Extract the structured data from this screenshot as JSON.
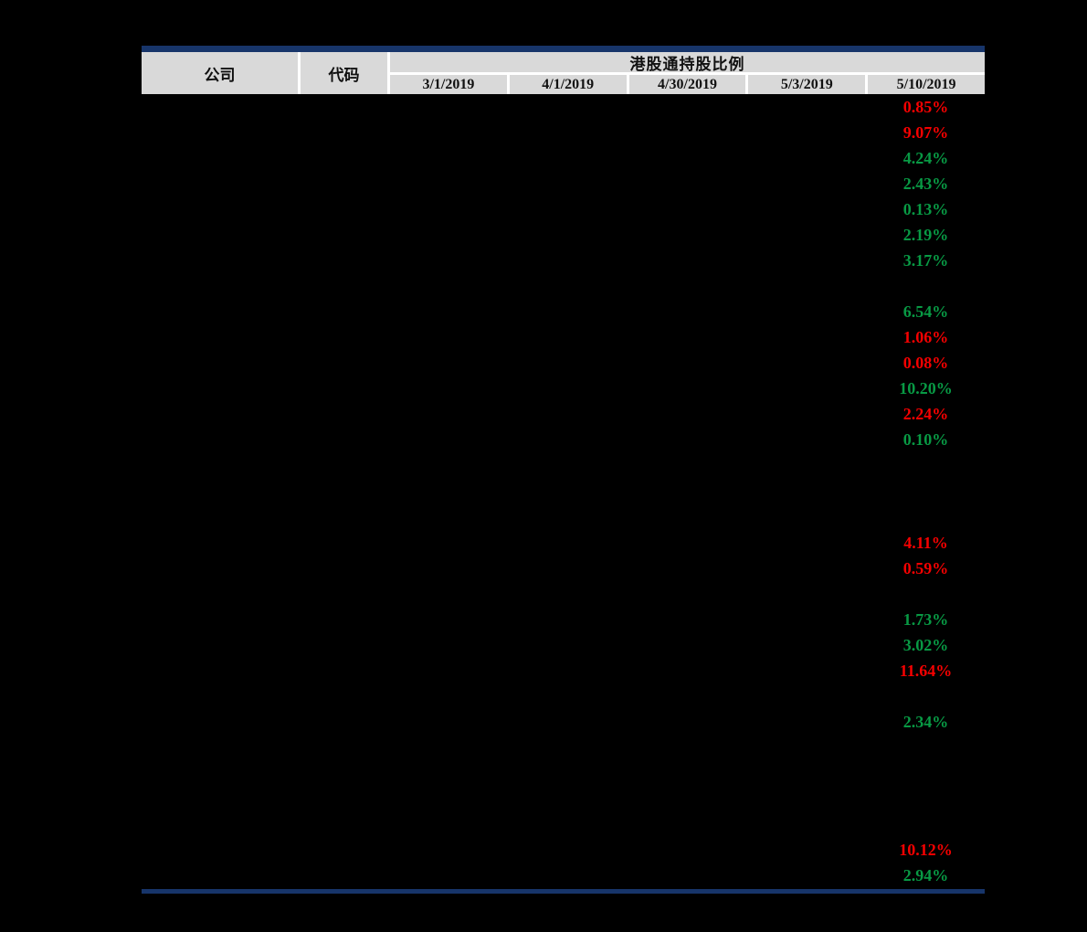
{
  "page": {
    "background": "#000000"
  },
  "colors": {
    "rule_blue": "#17356a",
    "header_bg": "#d9d9d9",
    "header_text": "#111111",
    "divider_white": "#ffffff",
    "value_red": "#f40000",
    "value_green": "#089944"
  },
  "table": {
    "header": {
      "company_label": "公司",
      "code_label": "代码",
      "group_title": "港股通持股比例",
      "dates": [
        "3/1/2019",
        "4/1/2019",
        "4/30/2019",
        "5/3/2019",
        "5/10/2019"
      ]
    },
    "rows": [
      {
        "value": "0.85%",
        "color": "red"
      },
      {
        "value": "9.07%",
        "color": "red"
      },
      {
        "value": "4.24%",
        "color": "green"
      },
      {
        "value": "2.43%",
        "color": "green"
      },
      {
        "value": "0.13%",
        "color": "green"
      },
      {
        "value": "2.19%",
        "color": "green"
      },
      {
        "value": "3.17%",
        "color": "green"
      },
      {
        "value": "",
        "color": ""
      },
      {
        "value": "6.54%",
        "color": "green"
      },
      {
        "value": "1.06%",
        "color": "red"
      },
      {
        "value": "0.08%",
        "color": "red"
      },
      {
        "value": "10.20%",
        "color": "green"
      },
      {
        "value": "2.24%",
        "color": "red"
      },
      {
        "value": "0.10%",
        "color": "green"
      },
      {
        "value": "",
        "color": ""
      },
      {
        "value": "",
        "color": ""
      },
      {
        "value": "",
        "color": ""
      },
      {
        "value": "4.11%",
        "color": "red"
      },
      {
        "value": "0.59%",
        "color": "red"
      },
      {
        "value": "",
        "color": ""
      },
      {
        "value": "1.73%",
        "color": "green"
      },
      {
        "value": "3.02%",
        "color": "green"
      },
      {
        "value": "11.64%",
        "color": "red"
      },
      {
        "value": "",
        "color": ""
      },
      {
        "value": "2.34%",
        "color": "green"
      },
      {
        "value": "",
        "color": ""
      },
      {
        "value": "",
        "color": ""
      },
      {
        "value": "",
        "color": ""
      },
      {
        "value": "",
        "color": ""
      },
      {
        "value": "10.12%",
        "color": "red"
      },
      {
        "value": "2.94%",
        "color": "green"
      }
    ]
  }
}
